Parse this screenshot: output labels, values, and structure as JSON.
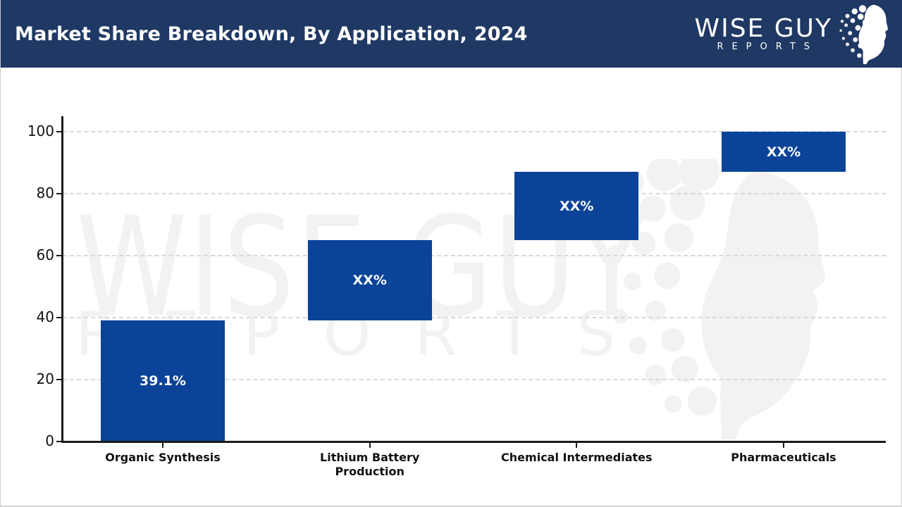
{
  "header": {
    "title": "Market Share Breakdown, By Application, 2024",
    "logo_line1": "WISE GUY",
    "logo_line2": "REPORTS"
  },
  "watermark": {
    "line1": "WISE GUY",
    "line2": "REPORTS"
  },
  "chart_data": {
    "type": "bar",
    "subtype": "waterfall",
    "title": "Market Share Breakdown, By Application, 2024",
    "categories": [
      "Organic Synthesis",
      "Lithium Battery Production",
      "Chemical Intermediates",
      "Pharmaceuticals"
    ],
    "segments": [
      {
        "category": "Organic Synthesis",
        "start": 0,
        "end": 39.1,
        "value_label": "39.1%"
      },
      {
        "category": "Lithium Battery Production",
        "start": 39.1,
        "end": 65,
        "value_label": "XX%"
      },
      {
        "category": "Chemical Intermediates",
        "start": 65,
        "end": 87,
        "value_label": "XX%"
      },
      {
        "category": "Pharmaceuticals",
        "start": 87,
        "end": 100,
        "value_label": "XX%"
      }
    ],
    "xlabel": "",
    "ylabel": "",
    "y_ticks": [
      0,
      20,
      40,
      60,
      80,
      100
    ],
    "ylim": [
      0,
      105
    ],
    "grid": "horizontal-dashed",
    "legend": "none"
  },
  "colors": {
    "header_bg": "#1f3864",
    "bar": "#0a4397",
    "bar_label": "#ffffff",
    "grid": "#d8d8d8",
    "axis": "#1a1a1a",
    "watermark": "#f2f2f2"
  }
}
